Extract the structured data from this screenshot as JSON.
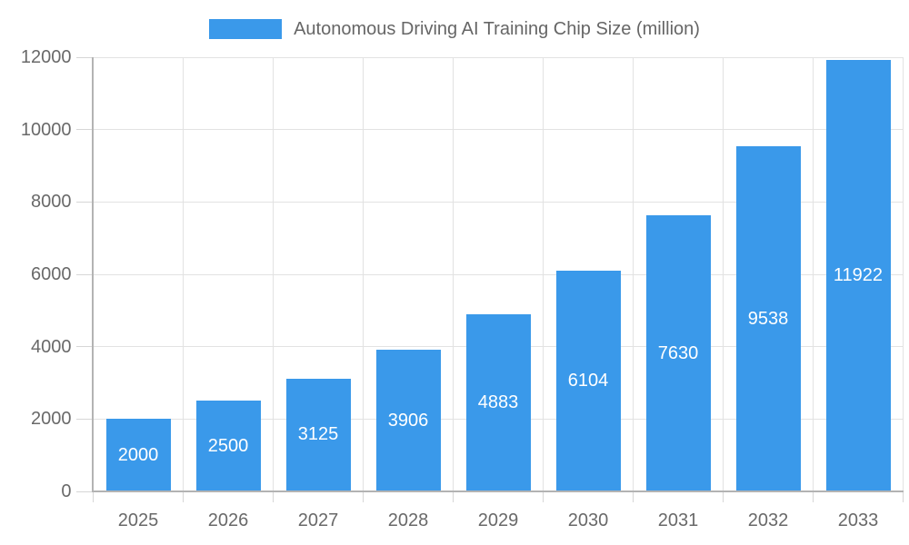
{
  "chart_data": {
    "type": "bar",
    "title": "Autonomous Driving AI Training Chip Size (million)",
    "categories": [
      "2025",
      "2026",
      "2027",
      "2028",
      "2029",
      "2030",
      "2031",
      "2032",
      "2033"
    ],
    "values": [
      2000,
      2500,
      3125,
      3906,
      4883,
      6104,
      7630,
      9538,
      11922
    ],
    "xlabel": "",
    "ylabel": "",
    "ylim": [
      0,
      12000
    ],
    "yticks": [
      0,
      2000,
      4000,
      6000,
      8000,
      10000,
      12000
    ],
    "grid": "on",
    "legend_position": "top-center",
    "value_labels": "centered-inside-bars",
    "colors": {
      "bar": "#3A99EA",
      "value_label": "#ffffff",
      "axis_text": "#696969",
      "legend_text": "#666666",
      "grid_line": "#e2e2e2",
      "tick_mark": "#d6d6d6",
      "axis_line": "#b3b3b3",
      "background": "#ffffff"
    }
  }
}
